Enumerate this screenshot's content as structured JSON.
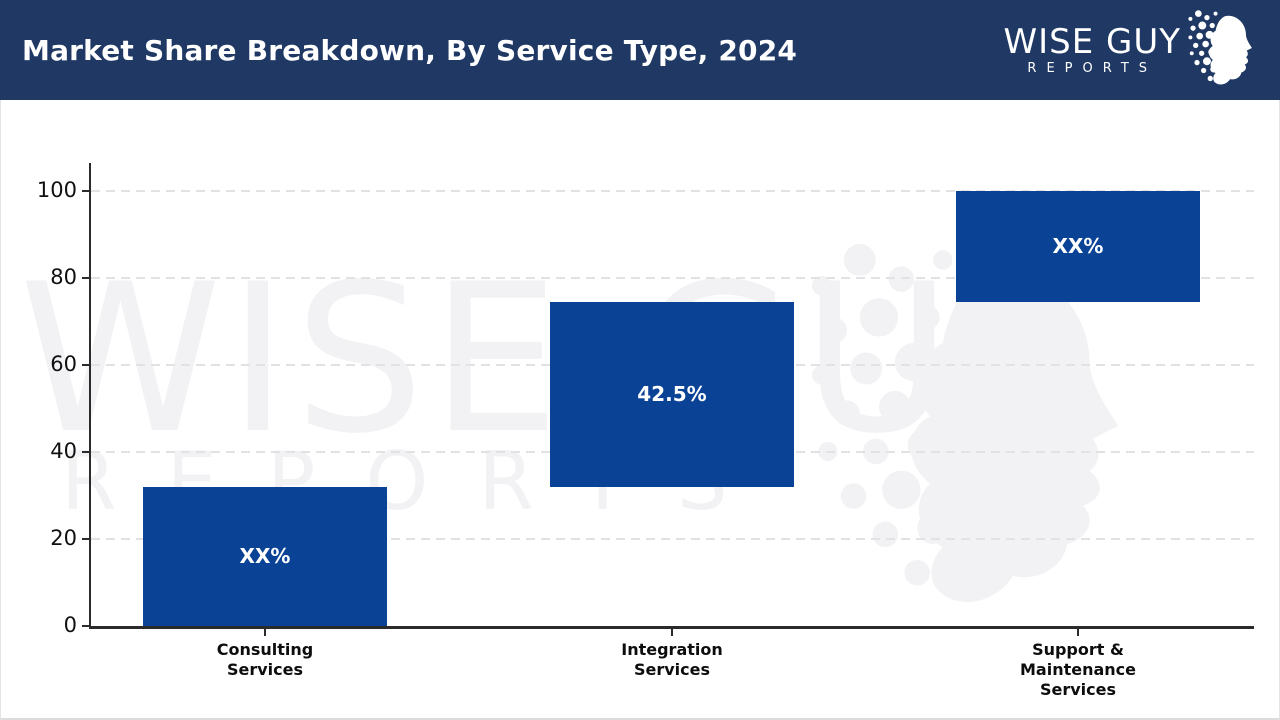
{
  "header": {
    "title": "Market Share Breakdown, By Service Type, 2024",
    "logo": {
      "line1": "WISE GUY",
      "line2": "REPORTS"
    }
  },
  "watermark": {
    "line1": "WISE GUY",
    "line2": "REPORTS"
  },
  "colors": {
    "header_bg": "#1f3864",
    "bar": "#0a4396",
    "axis": "#2b2b2b",
    "grid": "#e2e2e4",
    "watermark": "#f2f2f4",
    "bar_label": "#ffffff"
  },
  "chart_data": {
    "type": "bar",
    "variant": "waterfall",
    "title": "Market Share Breakdown, By Service Type, 2024",
    "categories": [
      "Consulting Services",
      "Integration Services",
      "Support & Maintenance Services"
    ],
    "category_lines": [
      [
        "Consulting",
        "Services"
      ],
      [
        "Integration",
        "Services"
      ],
      [
        "Support &",
        "Maintenance",
        "Services"
      ]
    ],
    "bars": [
      {
        "category": "Consulting Services",
        "label": "XX%",
        "start": 0,
        "end": 32
      },
      {
        "category": "Integration Services",
        "label": "42.5%",
        "start": 32,
        "end": 74.5
      },
      {
        "category": "Support & Maintenance Services",
        "label": "XX%",
        "start": 74.5,
        "end": 100
      }
    ],
    "yticks": [
      0,
      20,
      40,
      60,
      80,
      100
    ],
    "ylim": [
      0,
      100
    ],
    "xlabel": "",
    "ylabel": "",
    "grid": "horizontal dashed",
    "legend": "none"
  }
}
